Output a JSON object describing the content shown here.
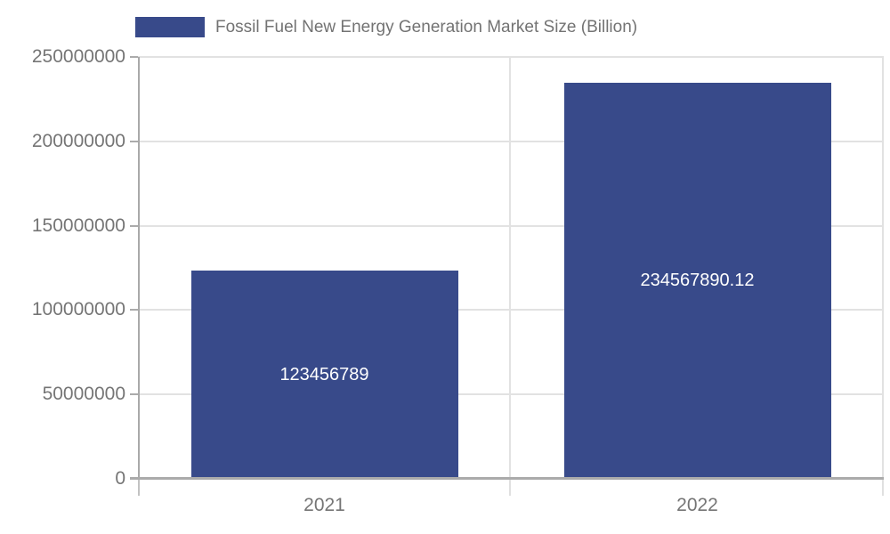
{
  "legend": {
    "label": "Fossil Fuel New Energy Generation Market Size (Billion)",
    "swatch_color": "#384a8a"
  },
  "chart_data": {
    "type": "bar",
    "title": "Fossil Fuel New Energy Generation Market Size (Billion)",
    "categories": [
      "2021",
      "2022"
    ],
    "values": [
      123456789,
      234567890.12
    ],
    "value_labels": [
      "123456789",
      "234567890.12"
    ],
    "xlabel": "",
    "ylabel": "",
    "ylim": [
      0,
      250000000
    ],
    "y_ticks": [
      0,
      50000000,
      100000000,
      150000000,
      200000000,
      250000000
    ],
    "y_tick_labels": [
      "0",
      "50000000",
      "100000000",
      "150000000",
      "200000000",
      "250000000"
    ],
    "grid": true,
    "legend_position": "top-left",
    "bar_color": "#384a8a",
    "value_label_color": "#ffffff",
    "axis_text_color": "#757575",
    "axis_line_color": "#ababab",
    "gridline_color": "#e2e2e2"
  }
}
